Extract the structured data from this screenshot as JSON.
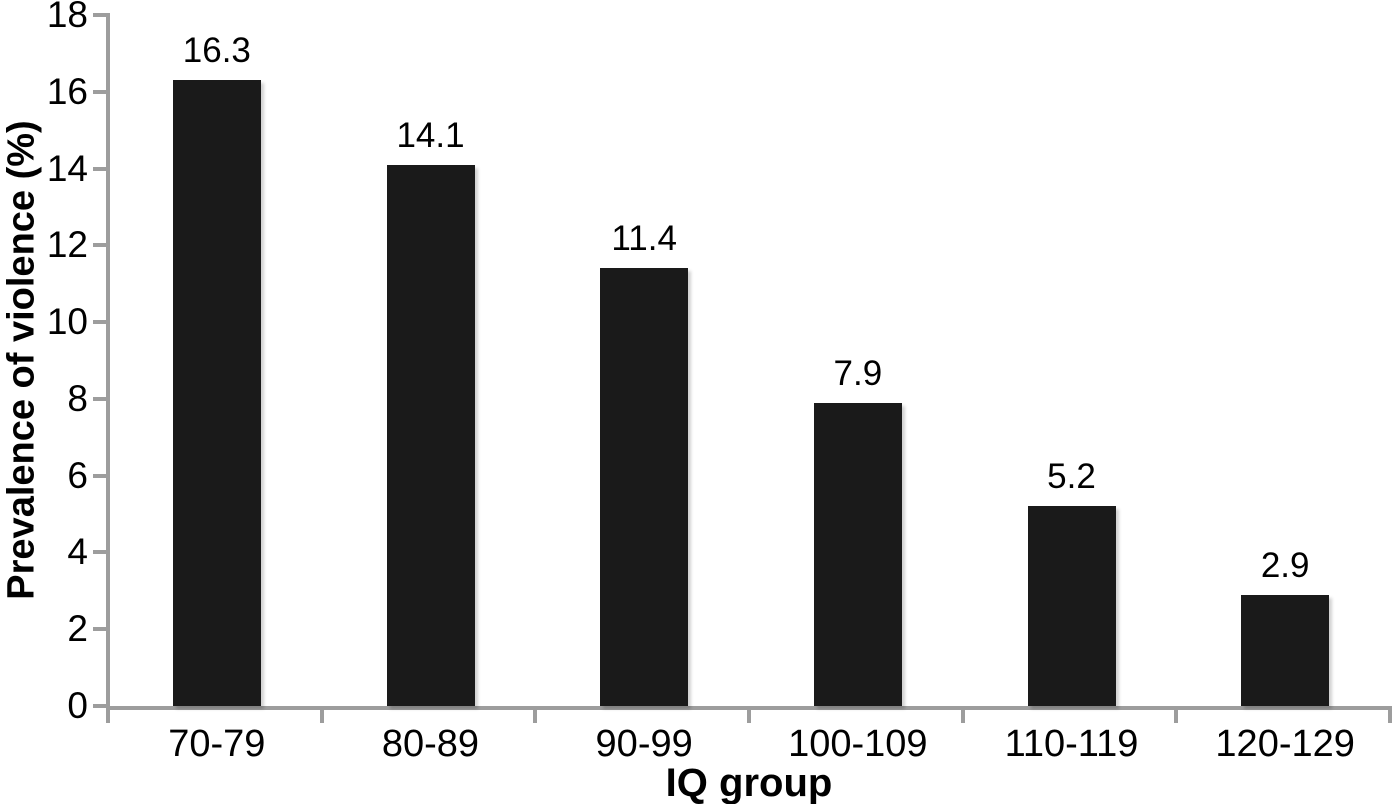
{
  "chart_data": {
    "type": "bar",
    "title": "",
    "xlabel": "IQ group",
    "ylabel": "Prevalence of violence (%)",
    "categories": [
      "70-79",
      "80-89",
      "90-99",
      "100-109",
      "110-119",
      "120-129"
    ],
    "values": [
      16.3,
      14.1,
      11.4,
      7.9,
      5.2,
      2.9
    ],
    "value_labels": [
      "16.3",
      "14.1",
      "11.4",
      "7.9",
      "5.2",
      "2.9"
    ],
    "series_name": "Prevalence of violence",
    "ylim": [
      0,
      18
    ],
    "yticks": [
      0,
      2,
      4,
      6,
      8,
      10,
      12,
      14,
      16,
      18
    ],
    "grid": false,
    "legend": "none",
    "bar_color": "#1a1a1a",
    "axis_color": "#9d9d9d",
    "text_color": "#000000",
    "background_color": "#ffffff"
  }
}
